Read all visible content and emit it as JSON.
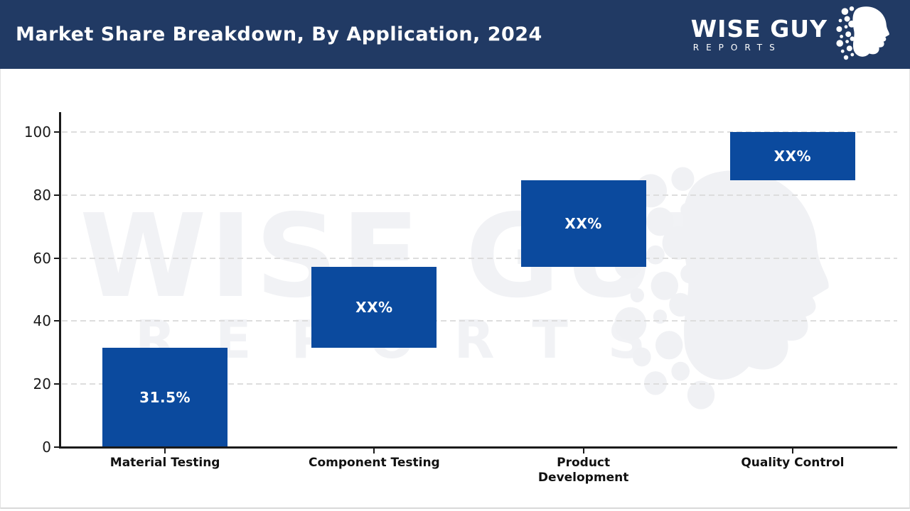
{
  "header": {
    "title": "Market Share Breakdown, By Application, 2024",
    "logo": {
      "line1": "WISE GUY",
      "line2": "REPORTS"
    },
    "bg_color": "#213a64"
  },
  "watermark": {
    "line1": "WISE GUY",
    "line2": "REPORTS"
  },
  "chart_data": {
    "type": "bar",
    "subtype": "waterfall",
    "title": "Market Share Breakdown, By Application, 2024",
    "categories": [
      "Material Testing",
      "Component Testing",
      "Product Development",
      "Quality Control"
    ],
    "segments": [
      {
        "category": "Material Testing",
        "display": "Material Testing",
        "start": 0,
        "end": 31.5,
        "label": "31.5%"
      },
      {
        "category": "Component Testing",
        "display": "Component Testing",
        "start": 31.5,
        "end": 57.2,
        "label": "XX%"
      },
      {
        "category": "Product Development",
        "display": "Product\nDevelopment",
        "start": 57.2,
        "end": 84.6,
        "label": "XX%"
      },
      {
        "category": "Quality Control",
        "display": "Quality Control",
        "start": 84.6,
        "end": 100,
        "label": "XX%"
      }
    ],
    "yticks": [
      0,
      20,
      40,
      60,
      80,
      100
    ],
    "ylim": [
      0,
      100
    ],
    "xlabel": "",
    "ylabel": "",
    "bar_color": "#0b4a9e",
    "grid": "dashed-horizontal",
    "legend": "none"
  }
}
